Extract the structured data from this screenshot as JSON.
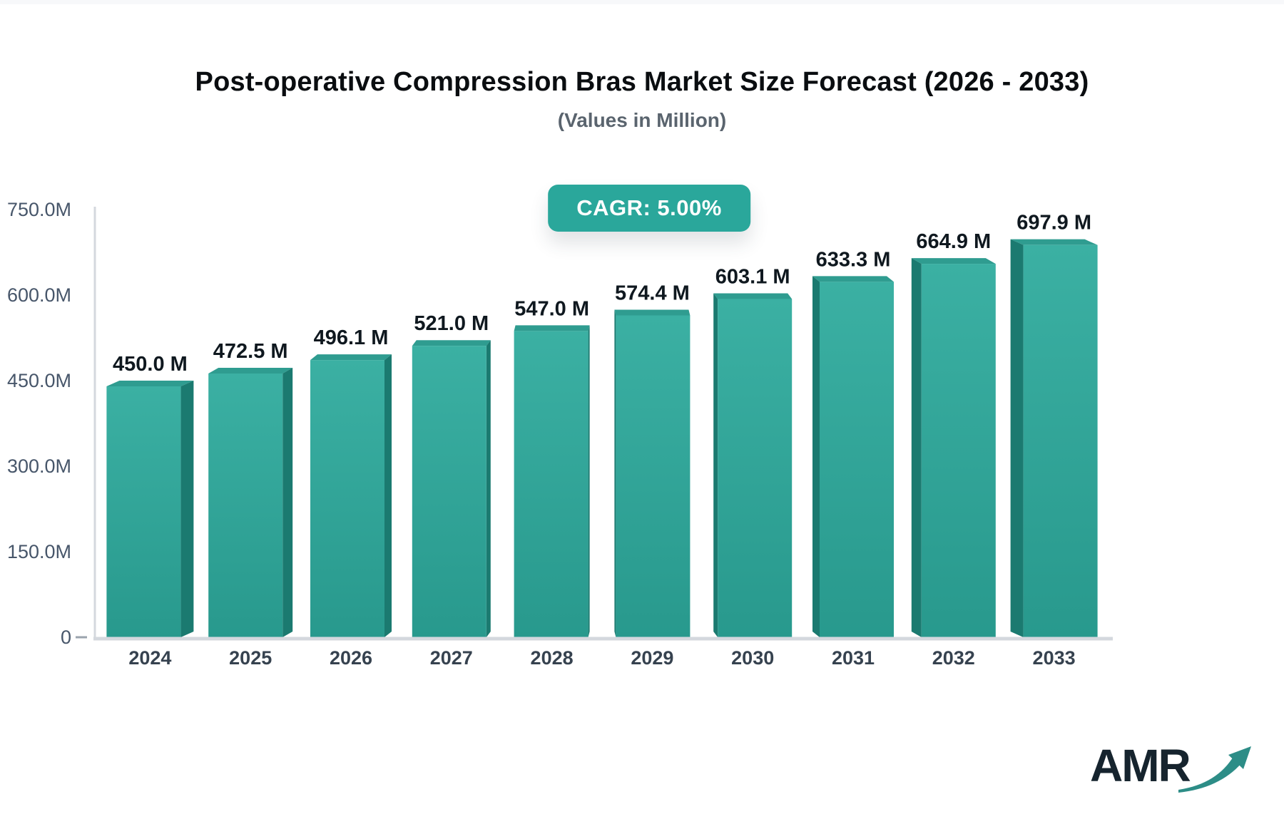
{
  "chart_data": {
    "type": "bar",
    "title": "Post-operative Compression Bras Market Size Forecast (2026 - 2033)",
    "subtitle": "(Values in Million)",
    "cagr_label": "CAGR: 5.00%",
    "categories": [
      "2024",
      "2025",
      "2026",
      "2027",
      "2028",
      "2029",
      "2030",
      "2031",
      "2032",
      "2033"
    ],
    "values": [
      450.0,
      472.5,
      496.1,
      521.0,
      547.0,
      574.4,
      603.1,
      633.3,
      664.9,
      697.9
    ],
    "value_labels": [
      "450.0 M",
      "472.5 M",
      "496.1 M",
      "521.0 M",
      "547.0 M",
      "574.4 M",
      "603.1 M",
      "633.3 M",
      "664.9 M",
      "697.9 M"
    ],
    "xlabel": "",
    "ylabel": "",
    "ylim": [
      0,
      750
    ],
    "ytick_values": [
      750,
      600,
      450,
      300,
      150,
      0
    ],
    "ytick_labels": [
      "750.0M",
      "600.0M",
      "450.0M",
      "300.0M",
      "150.0M",
      "0"
    ],
    "grid": false,
    "legend": null,
    "colors": {
      "bar_front_top": "#3bb0a3",
      "bar_front_bottom": "#28998d",
      "bar_side": "#1b7a70",
      "bar_top_face": "#2f9c90",
      "axis_line": "#d4d8de",
      "zero_tick_dash": "#9aa3ad",
      "badge_bg": "#2aa79b",
      "badge_text": "#ffffff"
    }
  },
  "logo": {
    "text": "AMR",
    "text_color": "#16242e",
    "arrow_color": "#2d8d87"
  }
}
